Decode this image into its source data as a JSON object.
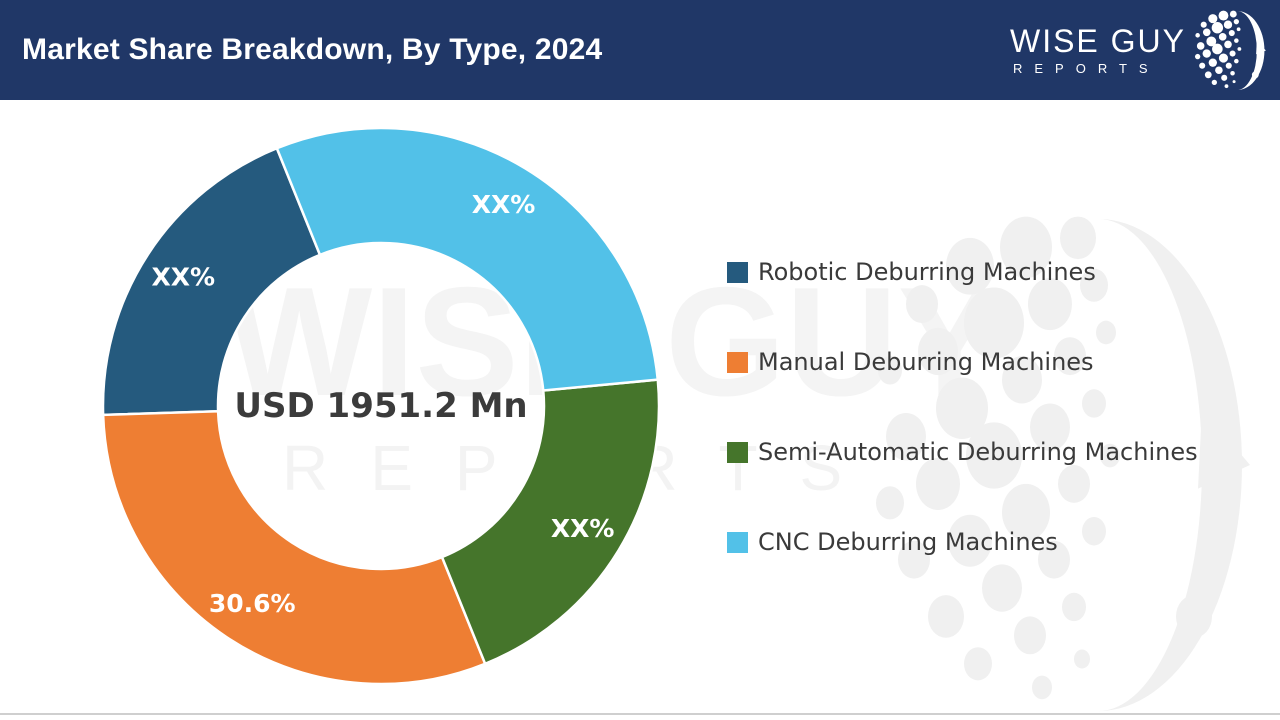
{
  "header": {
    "title": "Market Share Breakdown, By Type, 2024",
    "logo": {
      "line1": "WISE GUY",
      "line2": "REPORTS"
    }
  },
  "watermark": {
    "line1": "WISE GUY",
    "line2": "REPORTS"
  },
  "colors": {
    "header_bg": "#203767",
    "legend_text": "#3a3a3a",
    "center_text": "#3b3b3b",
    "watermark": "#f2f2f2",
    "divider": "#cfcfcf"
  },
  "chart_data": {
    "type": "pie",
    "subtype": "donut",
    "title": "Market Share Breakdown, By Type, 2024",
    "center_label": "USD 1951.2 Mn",
    "start_angle_deg": 112,
    "direction": "counterclockwise",
    "legend_position": "right",
    "segments": [
      {
        "label": "Robotic Deburring Machines",
        "display_value": "XX%",
        "share_pct_est": 19.4,
        "color": "#255a7e"
      },
      {
        "label": "Manual Deburring Machines",
        "display_value": "30.6%",
        "share_pct_est": 30.6,
        "color": "#ee7e33"
      },
      {
        "label": "Semi-Automatic Deburring Machines",
        "display_value": "XX%",
        "share_pct_est": 20.4,
        "color": "#45752b"
      },
      {
        "label": "CNC Deburring Machines",
        "display_value": "XX%",
        "share_pct_est": 29.6,
        "color": "#52c1e8"
      }
    ]
  }
}
